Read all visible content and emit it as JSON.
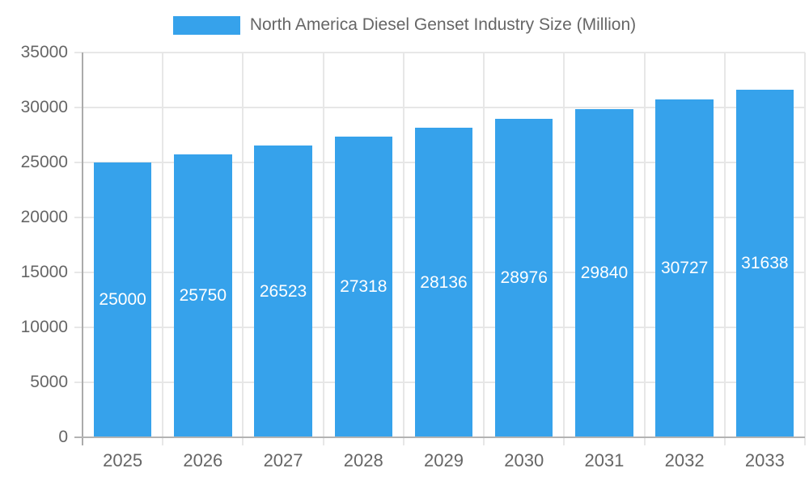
{
  "legend": {
    "items": [
      {
        "label": "North America Diesel Genset Industry Size (Million)",
        "color": "#36A2EB"
      }
    ],
    "position": "top"
  },
  "chart_data": {
    "type": "bar",
    "categories": [
      "2025",
      "2026",
      "2027",
      "2028",
      "2029",
      "2030",
      "2031",
      "2032",
      "2033"
    ],
    "series": [
      {
        "name": "North America Diesel Genset Industry Size (Million)",
        "values": [
          25000,
          25750,
          26523,
          27318,
          28136,
          28976,
          29840,
          30727,
          31638
        ],
        "color": "#36A2EB"
      }
    ],
    "title": "",
    "xlabel": "",
    "ylabel": "",
    "ylim": [
      0,
      35000
    ],
    "yticks": [
      0,
      5000,
      10000,
      15000,
      20000,
      25000,
      30000,
      35000
    ],
    "grid": true,
    "legend_position": "top",
    "value_labels": {
      "position": "inside-center",
      "color": "#FFFFFF"
    }
  },
  "colors": {
    "bar": "#36A2EB",
    "grid": "#E7E7E7",
    "axis_line": "#ABABAB",
    "text": "#666666",
    "value_label": "#FFFFFF",
    "background": "#FFFFFF"
  }
}
